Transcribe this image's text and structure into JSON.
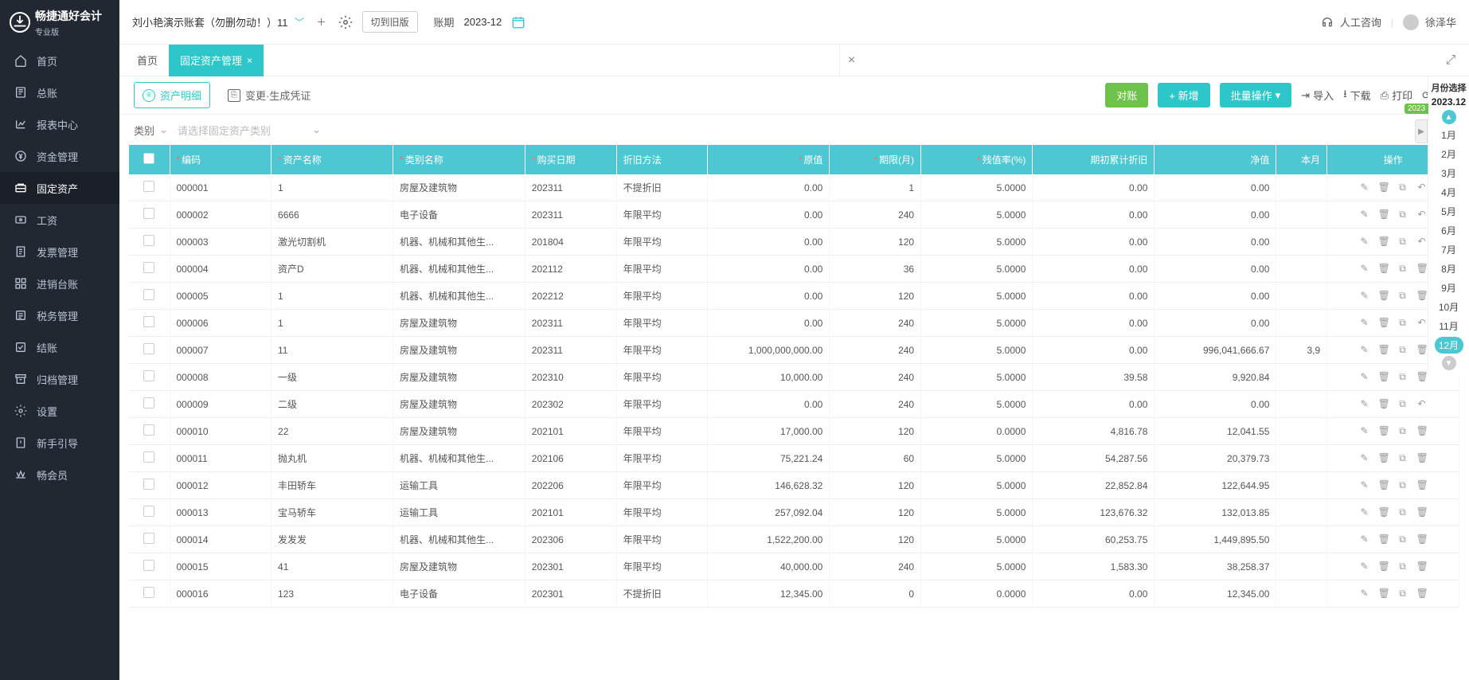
{
  "brand": {
    "name": "畅捷通好会计",
    "edition": "专业版"
  },
  "header": {
    "account_name": "刘小艳演示账套（勿删勿动！）11",
    "old_version_btn": "切到旧版",
    "period_label": "账期",
    "period_value": "2023-12",
    "support_label": "人工咨询",
    "user_name": "徐泽华"
  },
  "sidebar": {
    "items": [
      {
        "label": "首页",
        "icon": "home"
      },
      {
        "label": "总账",
        "icon": "ledger"
      },
      {
        "label": "报表中心",
        "icon": "chart"
      },
      {
        "label": "资金管理",
        "icon": "money"
      },
      {
        "label": "固定资产",
        "icon": "asset",
        "active": true
      },
      {
        "label": "工资",
        "icon": "salary"
      },
      {
        "label": "发票管理",
        "icon": "invoice"
      },
      {
        "label": "进销台账",
        "icon": "stock"
      },
      {
        "label": "税务管理",
        "icon": "tax"
      },
      {
        "label": "结账",
        "icon": "close"
      },
      {
        "label": "归档管理",
        "icon": "archive"
      },
      {
        "label": "设置",
        "icon": "settings"
      },
      {
        "label": "新手引导",
        "icon": "guide"
      },
      {
        "label": "畅会员",
        "icon": "vip"
      }
    ]
  },
  "tabs": {
    "items": [
      {
        "label": "首页",
        "active": false,
        "closable": false
      },
      {
        "label": "固定资产管理",
        "active": true,
        "closable": true
      }
    ]
  },
  "subtabs": {
    "detail": "资产明细",
    "voucher": "变更·生成凭证"
  },
  "toolbar": {
    "reconcile": "对账",
    "add": "+ 新增",
    "batch": "批量操作",
    "import": "导入",
    "download": "下载",
    "print": "打印",
    "refresh": "刷新"
  },
  "filter": {
    "category_label": "类别",
    "category_placeholder": "请选择固定资产类别"
  },
  "table": {
    "headers": {
      "code": "编码",
      "asset_name": "资产名称",
      "category": "类别名称",
      "purchase_date": "购买日期",
      "depr_method": "折旧方法",
      "orig_value": "原值",
      "period": "期限(月)",
      "residual_rate": "残值率(%)",
      "init_depr": "期初累计折旧",
      "net_value": "净值",
      "this_period": "本月",
      "ops": "操作"
    },
    "rows": [
      {
        "code": "000001",
        "name": "1",
        "cat": "房屋及建筑物",
        "date": "202311",
        "dep": "不提折旧",
        "orig": "0.00",
        "period": "1",
        "rate": "5.0000",
        "init": "0.00",
        "net": "0.00",
        "this": "",
        "undo": true
      },
      {
        "code": "000002",
        "name": "6666",
        "cat": "电子设备",
        "date": "202311",
        "dep": "年限平均",
        "orig": "0.00",
        "period": "240",
        "rate": "5.0000",
        "init": "0.00",
        "net": "0.00",
        "this": "",
        "undo": true
      },
      {
        "code": "000003",
        "name": "激光切割机",
        "cat": "机器、机械和其他生...",
        "date": "201804",
        "dep": "年限平均",
        "orig": "0.00",
        "period": "120",
        "rate": "5.0000",
        "init": "0.00",
        "net": "0.00",
        "this": "",
        "undo": true
      },
      {
        "code": "000004",
        "name": "资产D",
        "cat": "机器、机械和其他生...",
        "date": "202112",
        "dep": "年限平均",
        "orig": "0.00",
        "period": "36",
        "rate": "5.0000",
        "init": "0.00",
        "net": "0.00",
        "this": ""
      },
      {
        "code": "000005",
        "name": "1",
        "cat": "机器、机械和其他生...",
        "date": "202212",
        "dep": "年限平均",
        "orig": "0.00",
        "period": "120",
        "rate": "5.0000",
        "init": "0.00",
        "net": "0.00",
        "this": ""
      },
      {
        "code": "000006",
        "name": "1",
        "cat": "房屋及建筑物",
        "date": "202311",
        "dep": "年限平均",
        "orig": "0.00",
        "period": "240",
        "rate": "5.0000",
        "init": "0.00",
        "net": "0.00",
        "this": "",
        "undo": true
      },
      {
        "code": "000007",
        "name": "11",
        "cat": "房屋及建筑物",
        "date": "202311",
        "dep": "年限平均",
        "orig": "1,000,000,000.00",
        "period": "240",
        "rate": "5.0000",
        "init": "0.00",
        "net": "996,041,666.67",
        "this": "3,9"
      },
      {
        "code": "000008",
        "name": "一级",
        "cat": "房屋及建筑物",
        "date": "202310",
        "dep": "年限平均",
        "orig": "10,000.00",
        "period": "240",
        "rate": "5.0000",
        "init": "39.58",
        "net": "9,920.84",
        "this": ""
      },
      {
        "code": "000009",
        "name": "二级",
        "cat": "房屋及建筑物",
        "date": "202302",
        "dep": "年限平均",
        "orig": "0.00",
        "period": "240",
        "rate": "5.0000",
        "init": "0.00",
        "net": "0.00",
        "this": "",
        "undo": true
      },
      {
        "code": "000010",
        "name": "22",
        "cat": "房屋及建筑物",
        "date": "202101",
        "dep": "年限平均",
        "orig": "17,000.00",
        "period": "120",
        "rate": "0.0000",
        "init": "4,816.78",
        "net": "12,041.55",
        "this": ""
      },
      {
        "code": "000011",
        "name": "抛丸机",
        "cat": "机器、机械和其他生...",
        "date": "202106",
        "dep": "年限平均",
        "orig": "75,221.24",
        "period": "60",
        "rate": "5.0000",
        "init": "54,287.56",
        "net": "20,379.73",
        "this": ""
      },
      {
        "code": "000012",
        "name": "丰田轿车",
        "cat": "运输工具",
        "date": "202206",
        "dep": "年限平均",
        "orig": "146,628.32",
        "period": "120",
        "rate": "5.0000",
        "init": "22,852.84",
        "net": "122,644.95",
        "this": ""
      },
      {
        "code": "000013",
        "name": "宝马轿车",
        "cat": "运输工具",
        "date": "202101",
        "dep": "年限平均",
        "orig": "257,092.04",
        "period": "120",
        "rate": "5.0000",
        "init": "123,676.32",
        "net": "132,013.85",
        "this": ""
      },
      {
        "code": "000014",
        "name": "发发发",
        "cat": "机器、机械和其他生...",
        "date": "202306",
        "dep": "年限平均",
        "orig": "1,522,200.00",
        "period": "120",
        "rate": "5.0000",
        "init": "60,253.75",
        "net": "1,449,895.50",
        "this": ""
      },
      {
        "code": "000015",
        "name": "41",
        "cat": "房屋及建筑物",
        "date": "202301",
        "dep": "年限平均",
        "orig": "40,000.00",
        "period": "240",
        "rate": "5.0000",
        "init": "1,583.30",
        "net": "38,258.37",
        "this": ""
      },
      {
        "code": "000016",
        "name": "123",
        "cat": "电子设备",
        "date": "202301",
        "dep": "不提折旧",
        "orig": "12,345.00",
        "period": "0",
        "rate": "0.0000",
        "init": "0.00",
        "net": "12,345.00",
        "this": ""
      }
    ]
  },
  "month_panel": {
    "title": "月份选择",
    "year_display": "2023.12",
    "year_badge": "2023",
    "months": [
      "1月",
      "2月",
      "3月",
      "4月",
      "5月",
      "6月",
      "7月",
      "8月",
      "9月",
      "10月",
      "11月",
      "12月"
    ],
    "active_month": 11
  },
  "colors": {
    "sidebar_bg": "#222831",
    "teal": "#2ec7c9",
    "header_teal": "#4dc7d1",
    "green": "#6cc24a"
  }
}
